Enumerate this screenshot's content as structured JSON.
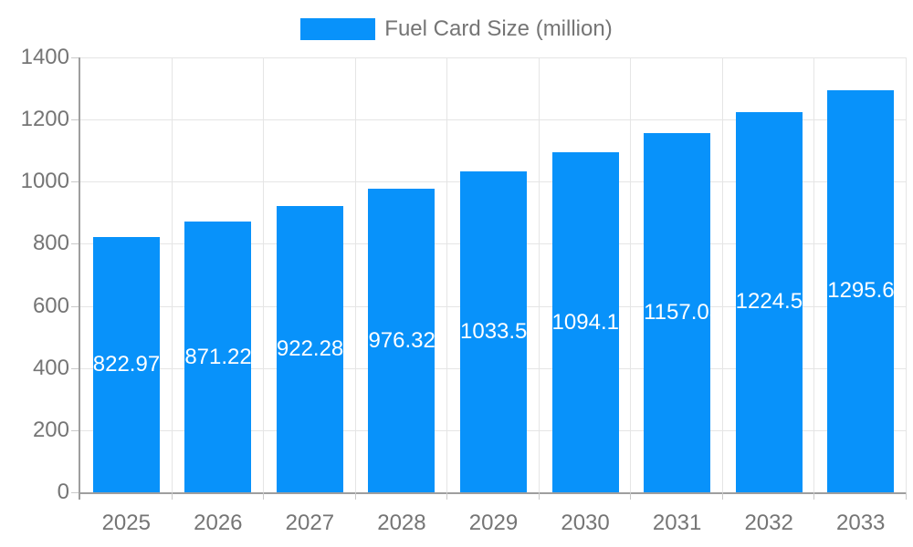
{
  "legend": {
    "series_label": "Fuel Card Size (million)"
  },
  "chart_data": {
    "type": "bar",
    "title": "Fuel Card Size (million)",
    "categories": [
      "2025",
      "2026",
      "2027",
      "2028",
      "2029",
      "2030",
      "2031",
      "2032",
      "2033"
    ],
    "values": [
      822.97,
      871.22,
      922.28,
      976.32,
      1033.54,
      1094.11,
      1157.03,
      1224.52,
      1295.61
    ],
    "value_labels": [
      "822.97",
      "871.22",
      "922.28",
      "976.32",
      "1033.54",
      "1094.11",
      "1157.03",
      "1224.52",
      "1295.61"
    ],
    "xlabel": "",
    "ylabel": "",
    "ylim": [
      0,
      1400
    ],
    "y_ticks": [
      0,
      200,
      400,
      600,
      800,
      1000,
      1200,
      1400
    ],
    "grid": true,
    "legend_position": "top",
    "colors": {
      "bar": "#0892fa",
      "bar_value_text": "#ffffff",
      "tick_text": "#757575",
      "legend_text": "#757575",
      "gridline": "#e5e5e5",
      "axis_line": "#9e9e9e",
      "tick_mark": "#c9c9c9",
      "background": "#ffffff"
    }
  }
}
